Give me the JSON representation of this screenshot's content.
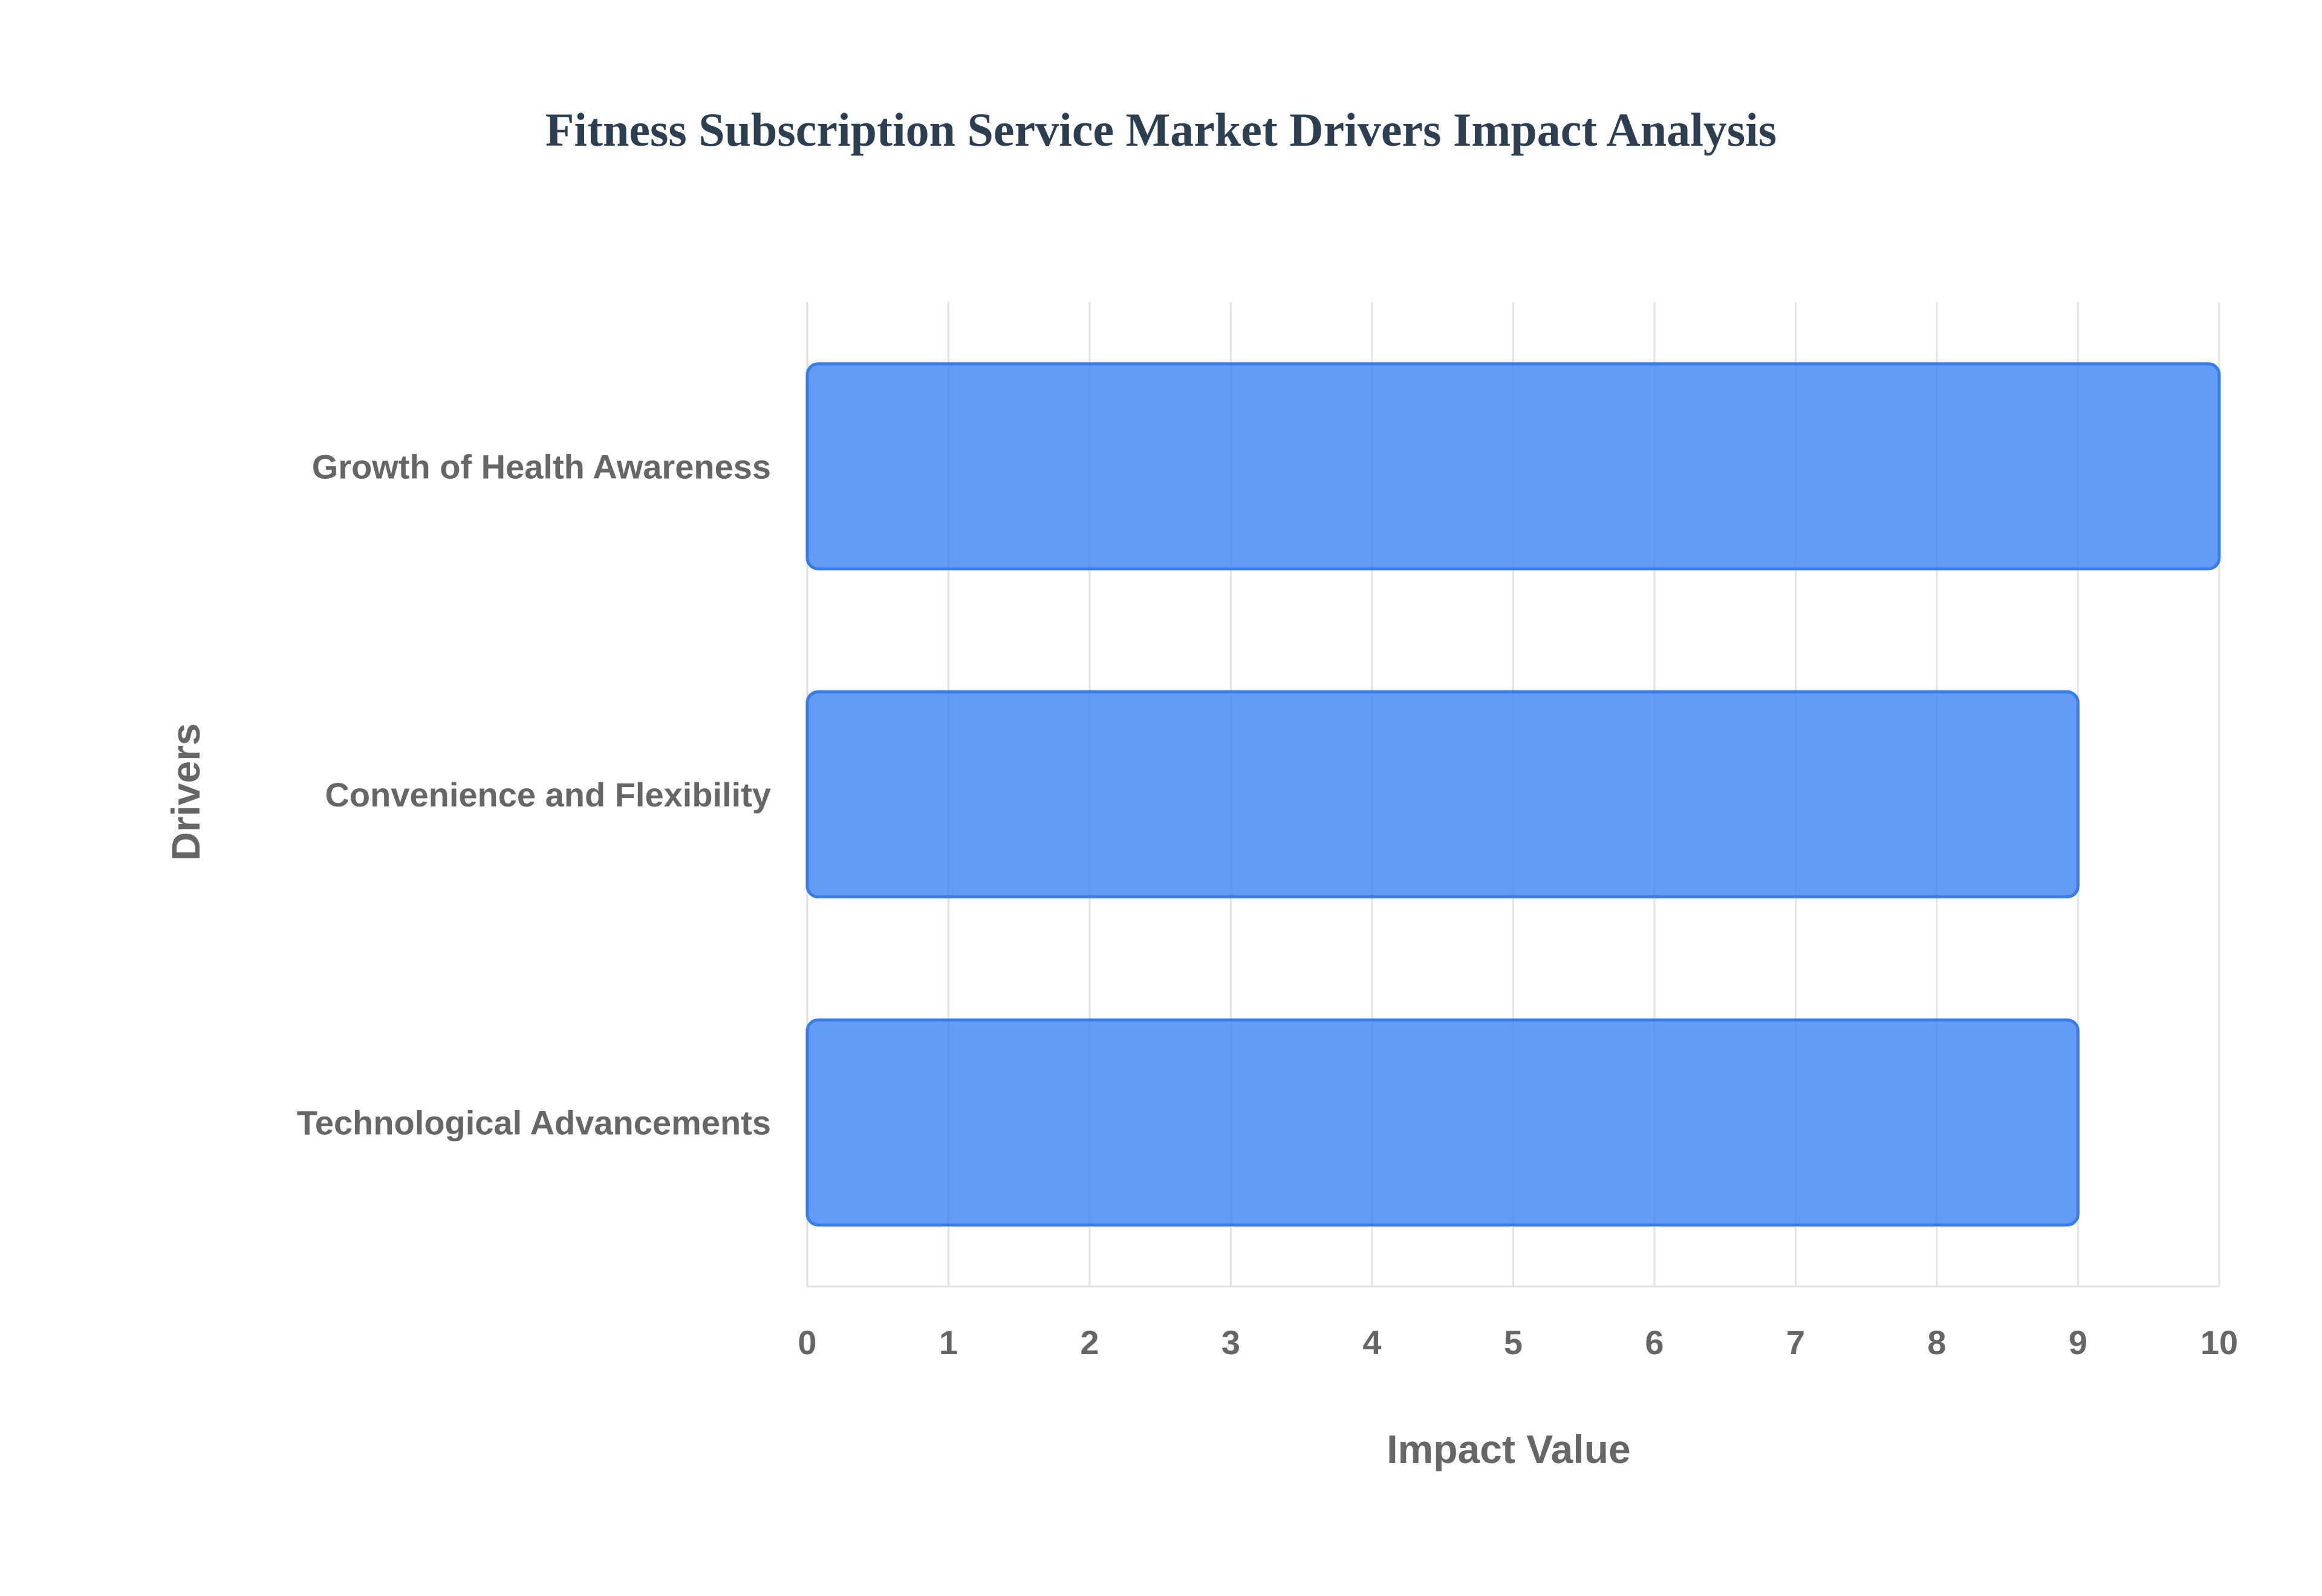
{
  "chart_data": {
    "type": "bar",
    "orientation": "horizontal",
    "title": "Fitness Subscription Service Market Drivers Impact Analysis",
    "xlabel": "Impact Value",
    "ylabel": "Drivers",
    "categories": [
      "Growth of Health Awareness",
      "Convenience and Flexibility",
      "Technological Advancements"
    ],
    "values": [
      10,
      9,
      9
    ],
    "xlim": [
      0,
      10
    ],
    "x_ticks": [
      "0",
      "1",
      "2",
      "3",
      "4",
      "5",
      "6",
      "7",
      "8",
      "9",
      "10"
    ],
    "grid": true,
    "legend": "none",
    "colors": {
      "bar_fill": "#4285f4",
      "bar_border": "#3b7be8",
      "title": "#2c3e50",
      "text": "#666666",
      "grid": "#e3e3e3"
    }
  }
}
